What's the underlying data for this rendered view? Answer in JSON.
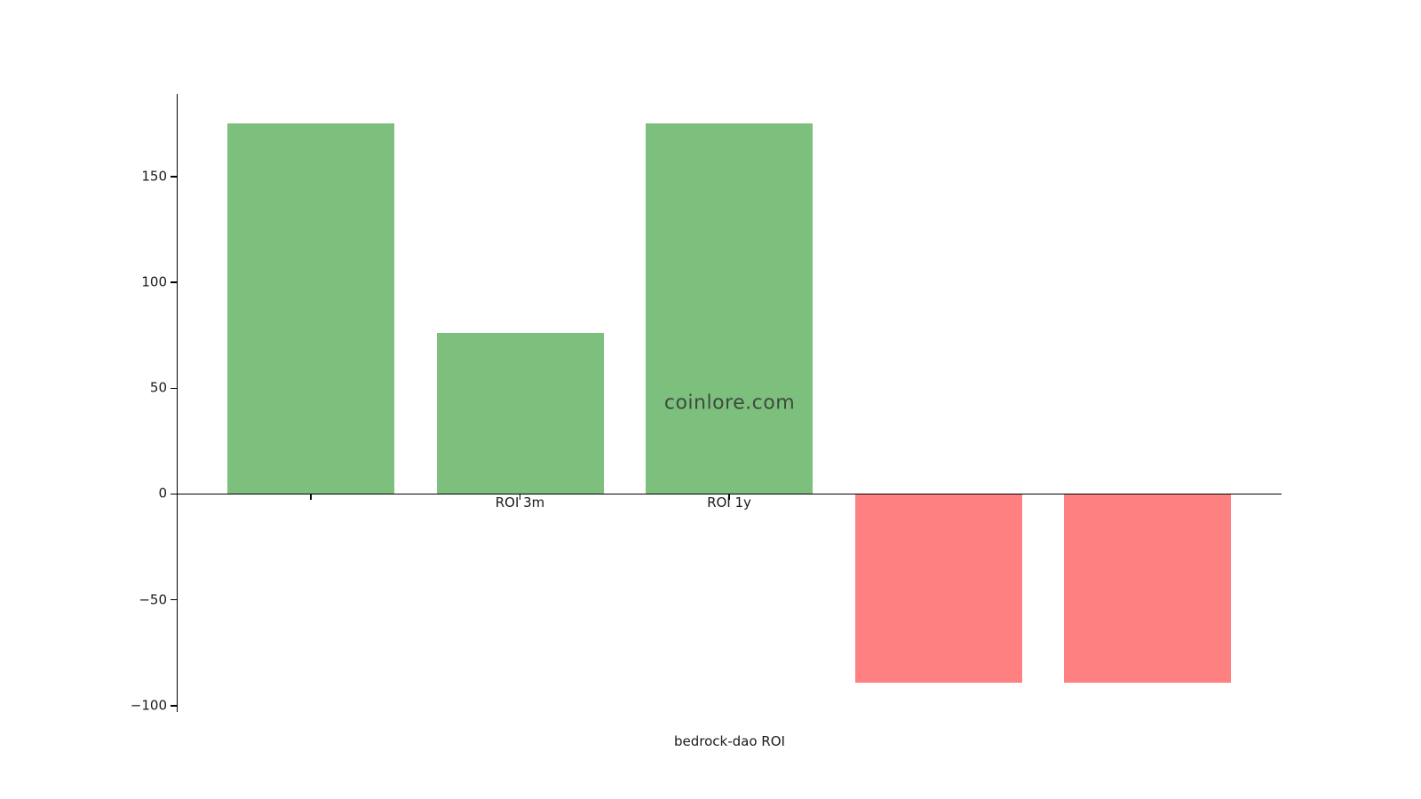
{
  "chart_data": {
    "type": "bar",
    "title": "",
    "xlabel": "bedrock-dao ROI",
    "ylabel": "",
    "categories": [
      "",
      "ROI 3m",
      "ROI 1y",
      "",
      ""
    ],
    "values": [
      175,
      76,
      175,
      -89,
      -89
    ],
    "bar_colors": [
      "#7dc07d",
      "#7dc07d",
      "#7dc07d",
      "#ff8080",
      "#ff8080"
    ],
    "positive_color": "#7dc07d",
    "negative_color": "#ff8080",
    "ylim": [
      -103,
      189
    ],
    "y_ticks": [
      150,
      100,
      50,
      0,
      -50,
      -100
    ],
    "y_tick_labels": [
      "150",
      "100",
      "50",
      "0",
      "−50",
      "−100"
    ],
    "x_tick_marks_visible": [
      true,
      true,
      true,
      false,
      false
    ],
    "grid": false,
    "legend": false,
    "axis_color": "#000000",
    "tick_label_color": "#1a1a1a"
  },
  "watermark": {
    "text": "coinlore.com",
    "color": "#3d4a3d"
  }
}
